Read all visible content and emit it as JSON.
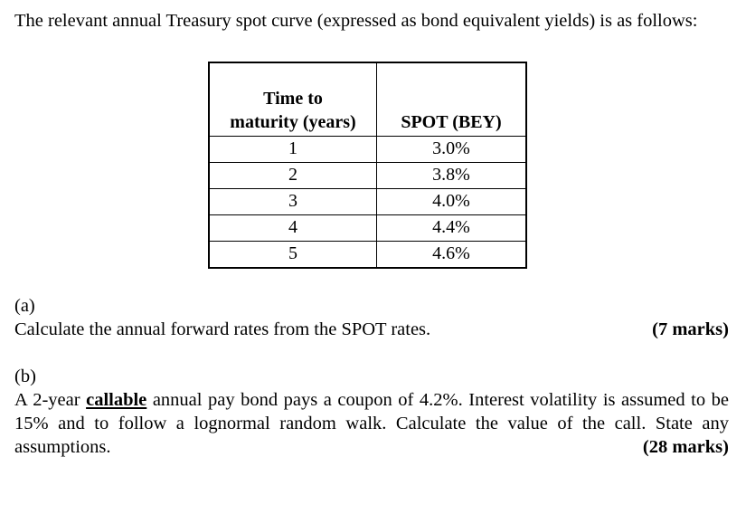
{
  "intro": "The relevant annual Treasury spot curve (expressed as bond equivalent yields) is as follows:",
  "table": {
    "col1_header_line1": "Time to",
    "col1_header_line2": "maturity (years)",
    "col2_header": "SPOT (BEY)",
    "rows": [
      {
        "maturity": "1",
        "spot": "3.0%"
      },
      {
        "maturity": "2",
        "spot": "3.8%"
      },
      {
        "maturity": "3",
        "spot": "4.0%"
      },
      {
        "maturity": "4",
        "spot": "4.4%"
      },
      {
        "maturity": "5",
        "spot": "4.6%"
      }
    ]
  },
  "chart_data": {
    "type": "table",
    "title": "Annual Treasury spot curve (bond equivalent yields)",
    "columns": [
      "Time to maturity (years)",
      "SPOT (BEY)"
    ],
    "x": [
      1,
      2,
      3,
      4,
      5
    ],
    "values": [
      "3.0%",
      "3.8%",
      "4.0%",
      "4.4%",
      "4.6%"
    ]
  },
  "part_a": {
    "label": "(a)",
    "text": "Calculate the annual forward rates from the SPOT rates.",
    "marks": "(7 marks)"
  },
  "part_b": {
    "label": "(b)",
    "text_before": "A 2-year ",
    "emphasis": "callable",
    "text_after": " annual pay bond pays a coupon of 4.2%. Interest volatility is assumed to be 15% and to follow a lognormal random walk. Calculate the value of the call. State any assumptions.",
    "marks": "(28 marks)"
  }
}
